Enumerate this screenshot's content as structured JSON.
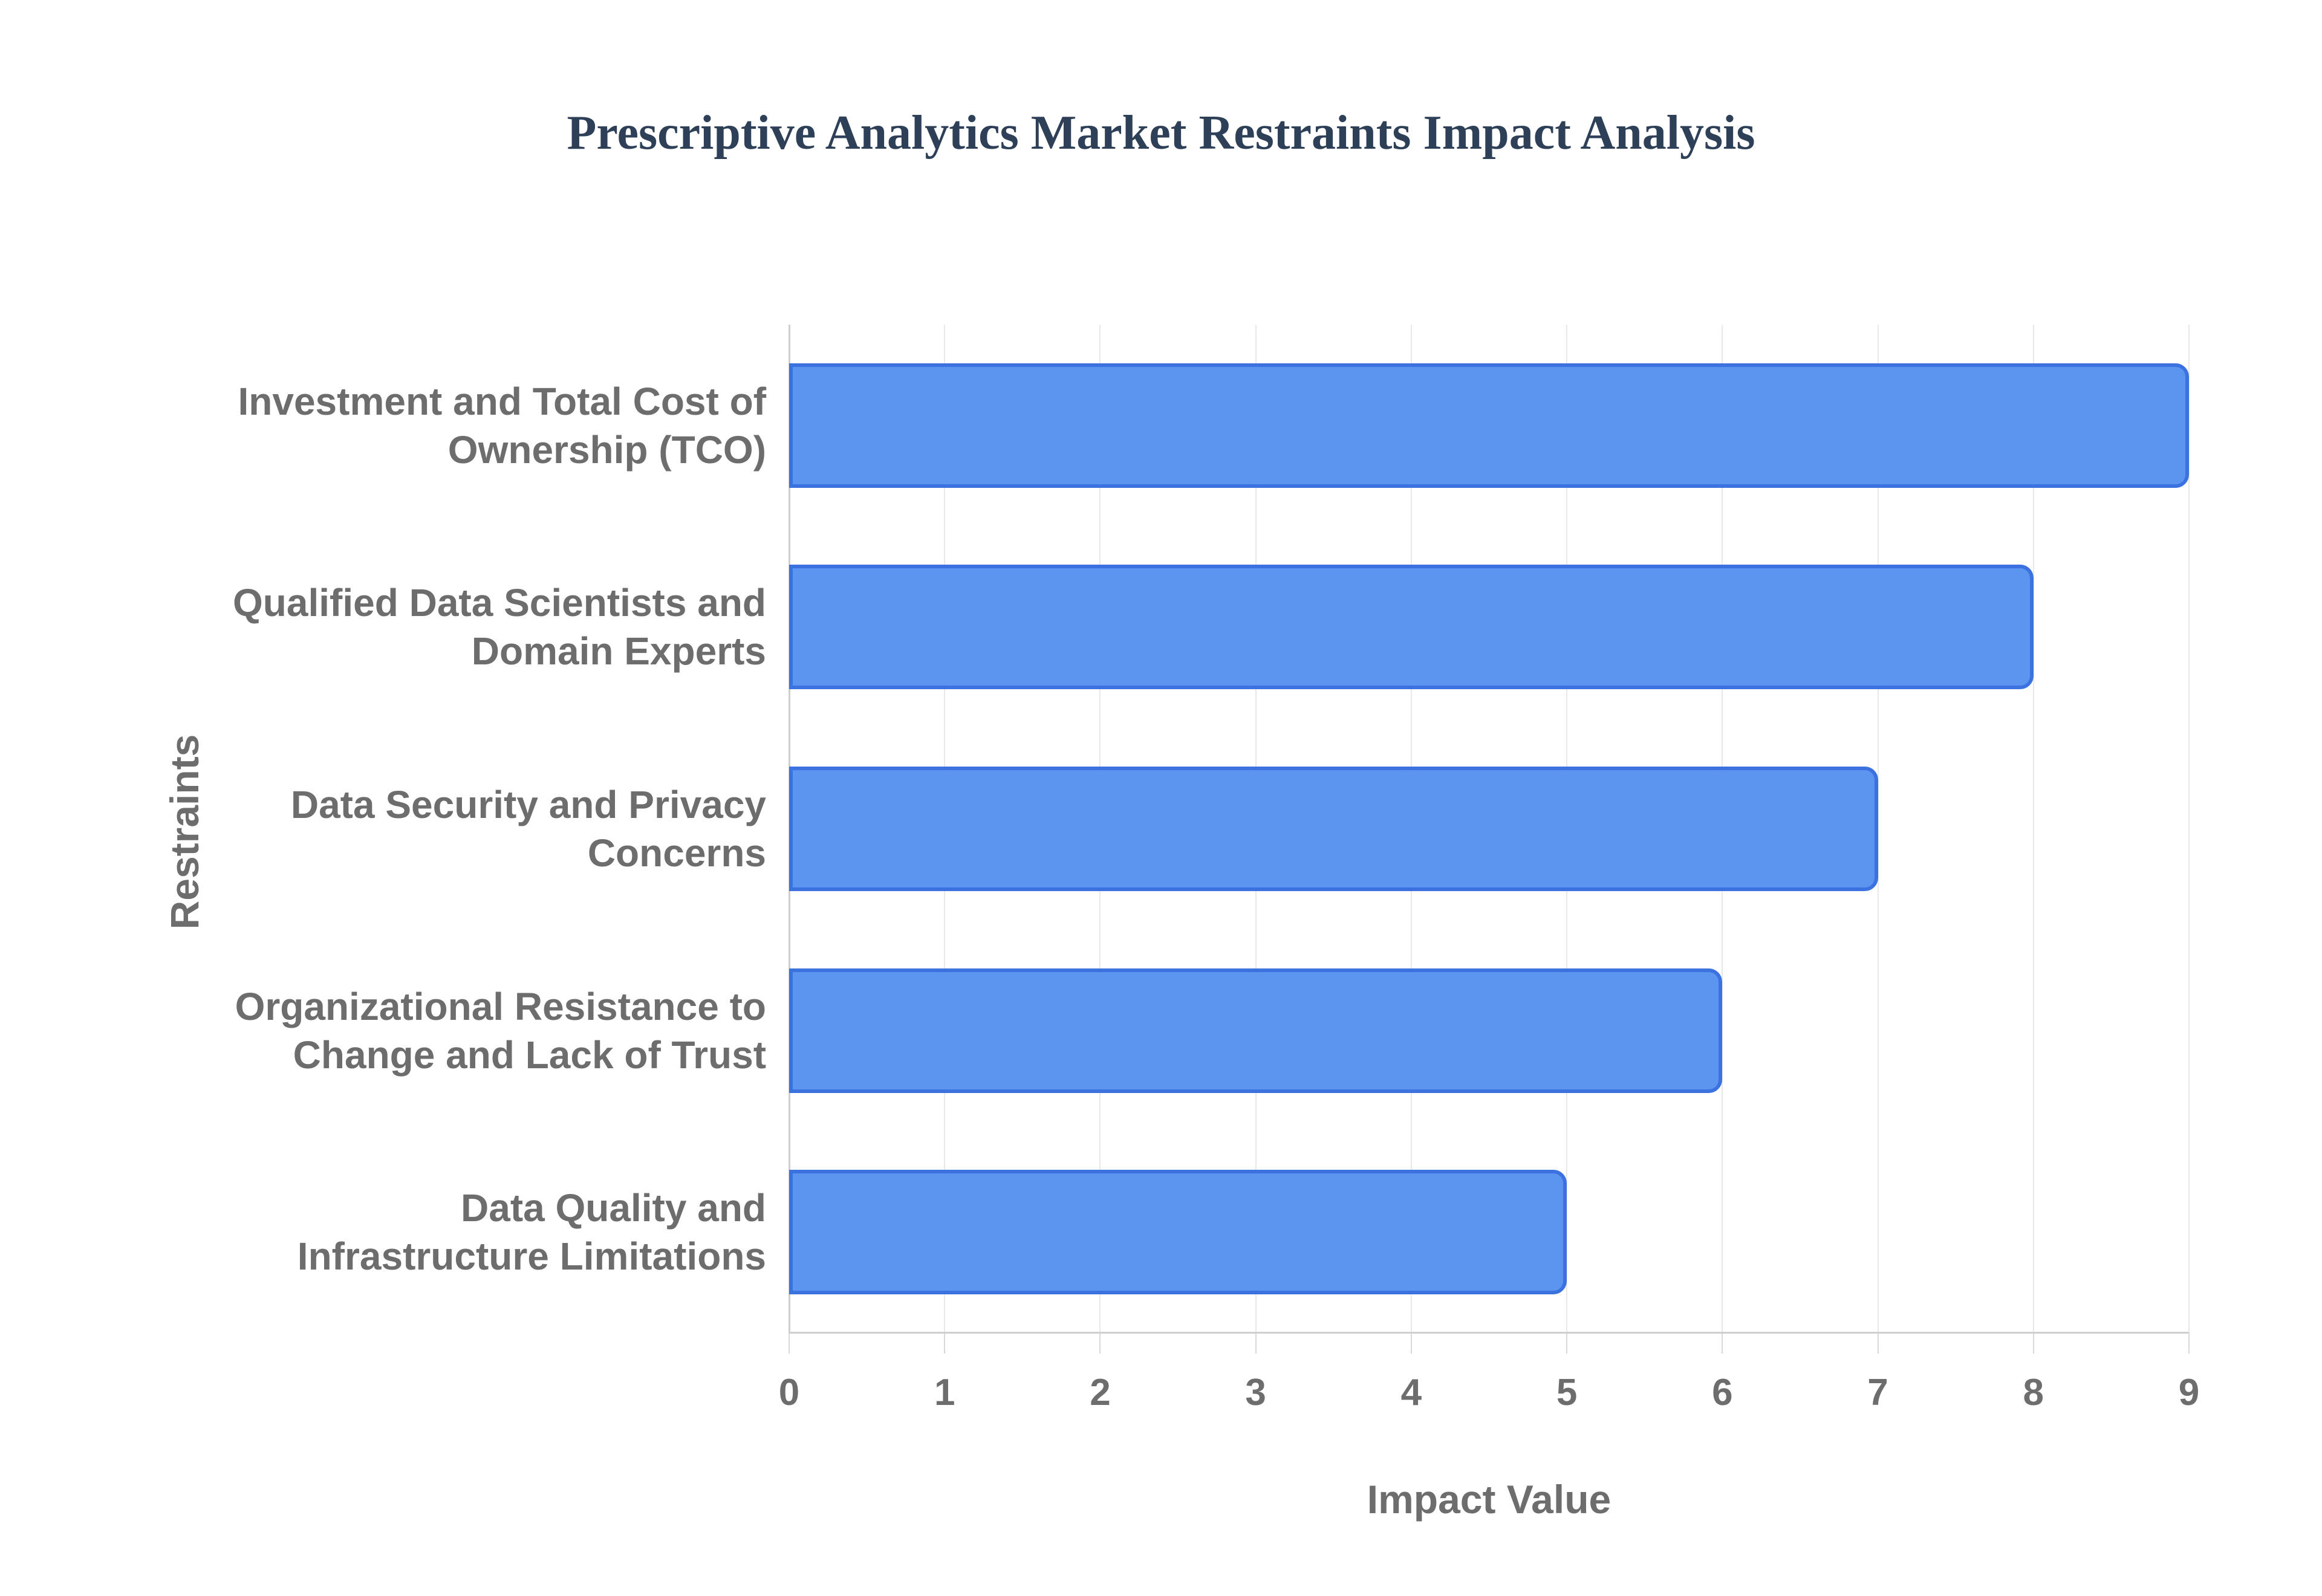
{
  "title": {
    "text": "Prescriptive Analytics Market Restraints Impact Analysis"
  },
  "colors": {
    "background": "#ffffff",
    "title_text": "#2e4057",
    "axis_text": "#6d6d6d",
    "bar_fill": "#5c95ef",
    "bar_border": "#3b72e0",
    "gridline": "#e8e8e8",
    "axis_line": "#cfcfcf"
  },
  "chart_data": {
    "type": "bar",
    "orientation": "horizontal",
    "title": "Prescriptive Analytics Market Restraints Impact Analysis",
    "xlabel": "Impact Value",
    "ylabel": "Restraints",
    "categories": [
      "Investment and Total Cost of Ownership (TCO)",
      "Qualified Data Scientists and Domain Experts",
      "Data Security and Privacy Concerns",
      "Organizational Resistance to Change and Lack of Trust",
      "Data Quality and Infrastructure Limitations"
    ],
    "category_label_lines": [
      [
        "Investment and Total Cost of",
        "Ownership (TCO)"
      ],
      [
        "Qualified Data Scientists and",
        "Domain Experts"
      ],
      [
        "Data Security and Privacy",
        "Concerns"
      ],
      [
        "Organizational Resistance to",
        "Change and Lack of Trust"
      ],
      [
        "Data Quality and",
        "Infrastructure Limitations"
      ]
    ],
    "values": [
      9,
      8,
      7,
      6,
      5
    ],
    "xlim": [
      0,
      9
    ],
    "xticks": [
      0,
      1,
      2,
      3,
      4,
      5,
      6,
      7,
      8,
      9
    ],
    "grid": true,
    "legend": false
  }
}
